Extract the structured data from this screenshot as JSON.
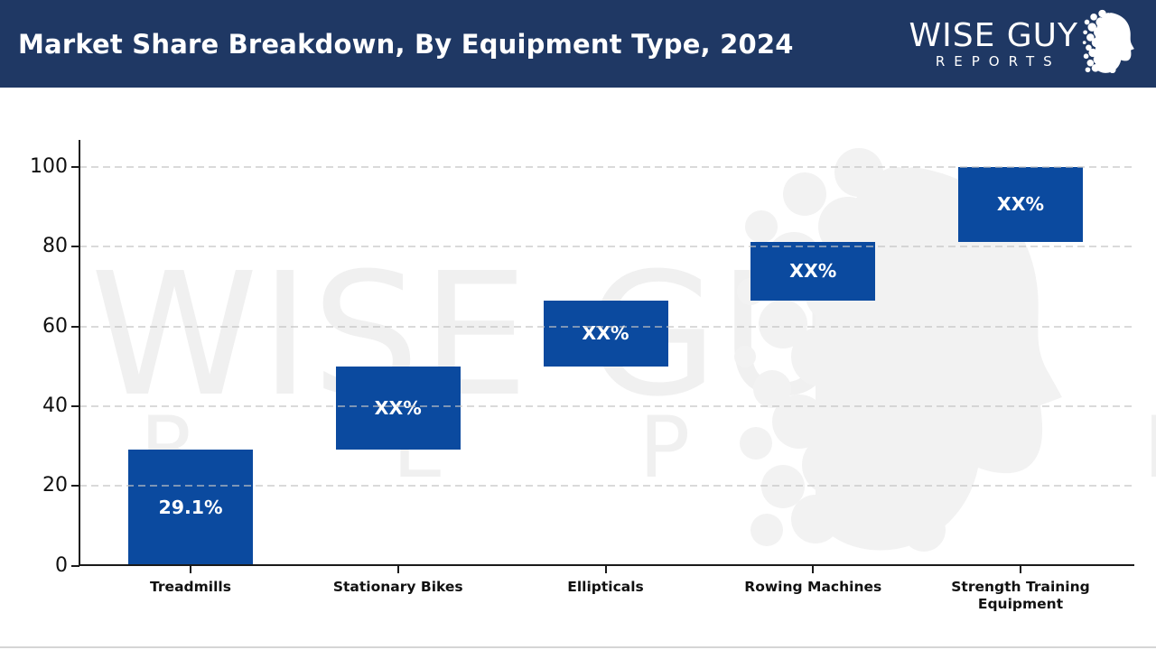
{
  "header": {
    "title": "Market Share Breakdown, By Equipment Type, 2024",
    "bg_color": "#1f3864"
  },
  "logo": {
    "line1": "WISE GUY",
    "line2": "REPORTS"
  },
  "watermark": {
    "line1": "WISE GUY",
    "line2": "R E P O R T S"
  },
  "chart_data": {
    "type": "bar",
    "subtype": "waterfall",
    "title": "Market Share Breakdown, By Equipment Type, 2024",
    "categories": [
      "Treadmills",
      "Stationary Bikes",
      "Ellipticals",
      "Rowing Machines",
      "Strength Training Equipment"
    ],
    "series": [
      {
        "name": "Market share (%)",
        "segments": [
          {
            "category": "Treadmills",
            "start": 0,
            "end": 29.1,
            "label": "29.1%"
          },
          {
            "category": "Stationary Bikes",
            "start": 29.1,
            "end": 50.0,
            "label": "XX%"
          },
          {
            "category": "Ellipticals",
            "start": 50.0,
            "end": 66.5,
            "label": "XX%"
          },
          {
            "category": "Rowing Machines",
            "start": 66.5,
            "end": 81.3,
            "label": "XX%"
          },
          {
            "category": "Strength Training Equipment",
            "start": 81.3,
            "end": 100,
            "label": "XX%"
          }
        ]
      }
    ],
    "xlabel": "",
    "ylabel": "",
    "ylim": [
      0,
      100
    ],
    "yticks": [
      0,
      20,
      40,
      60,
      80,
      100
    ],
    "grid": "horizontal-dashed",
    "legend": "none",
    "bar_color": "#0b4a9f",
    "value_label_color": "#ffffff"
  }
}
